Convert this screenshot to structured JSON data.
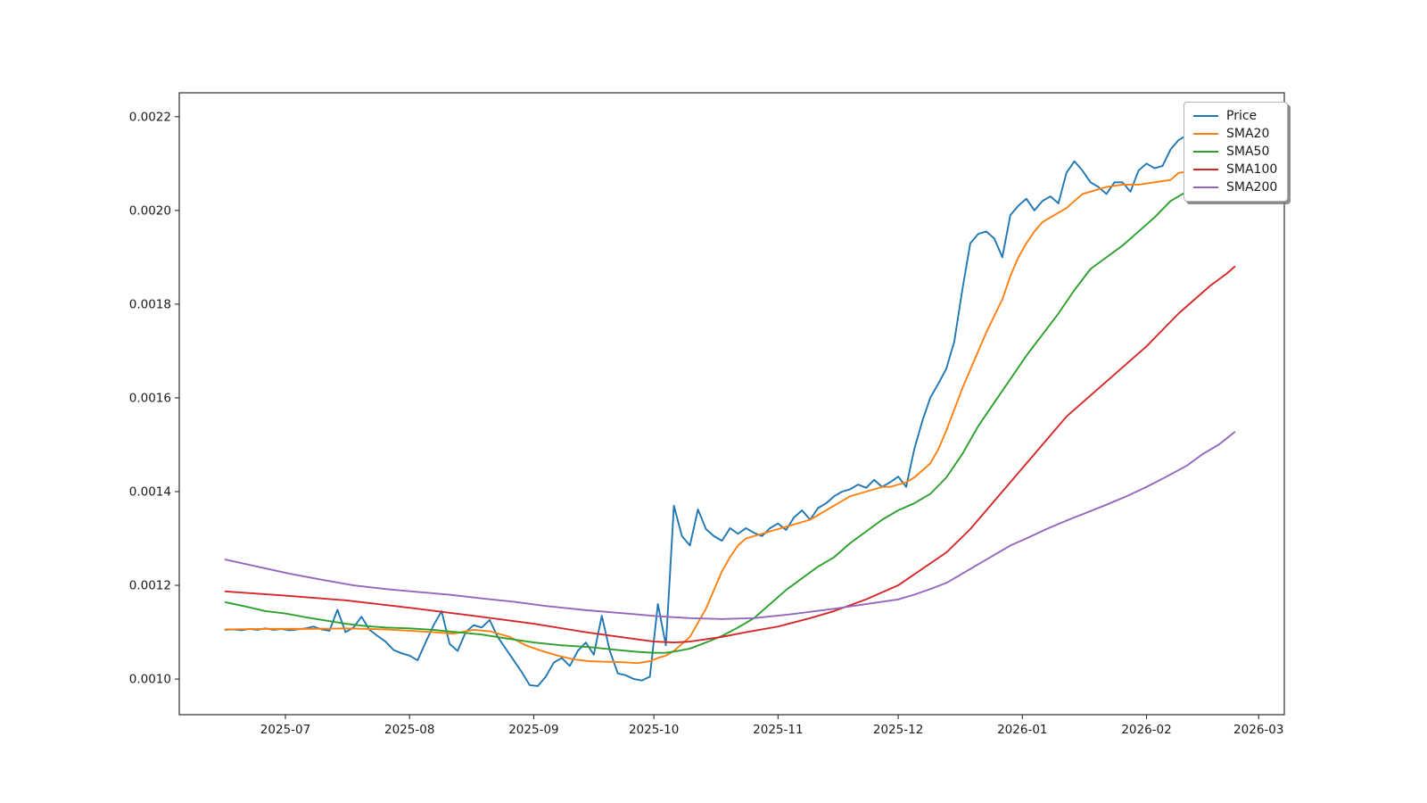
{
  "figure": {
    "background": "#ffffff",
    "text_color": "#1a1a1a",
    "frame_color": "#2b2b2b"
  },
  "legend": {
    "position": "upper-right",
    "entries": [
      "Price",
      "SMA20",
      "SMA50",
      "SMA100",
      "SMA200"
    ]
  },
  "chart_data": {
    "type": "line",
    "title": "",
    "xlabel": "",
    "ylabel": "",
    "grid": false,
    "x_axis": {
      "kind": "date",
      "start_date": "2025-06-16",
      "domain_days": [
        -11.5,
        264.4
      ],
      "tick_days": [
        15,
        46,
        77,
        107,
        138,
        168,
        199,
        230,
        258
      ],
      "tick_labels": [
        "2025-07",
        "2025-08",
        "2025-09",
        "2025-10",
        "2025-11",
        "2025-12",
        "2026-01",
        "2026-02",
        "2026-03"
      ]
    },
    "y_axis": {
      "domain": [
        0.000924,
        0.002251
      ],
      "tick_values": [
        0.001,
        0.0012,
        0.0014,
        0.0016,
        0.0018,
        0.002,
        0.0022
      ],
      "tick_labels": [
        "0.0010",
        "0.0012",
        "0.0014",
        "0.0016",
        "0.0018",
        "0.0020",
        "0.0022"
      ]
    },
    "value_scale": 0.0001,
    "series": [
      {
        "name": "Price",
        "color": "#1f77b4",
        "start_day": 0,
        "step_days": 2,
        "values": [
          11.05,
          11.06,
          11.04,
          11.07,
          11.05,
          11.08,
          11.05,
          11.07,
          11.04,
          11.06,
          11.08,
          11.12,
          11.06,
          11.03,
          11.48,
          11.0,
          11.1,
          11.33,
          11.05,
          10.92,
          10.8,
          10.62,
          10.55,
          10.5,
          10.4,
          10.78,
          11.15,
          11.45,
          10.75,
          10.6,
          11.0,
          11.15,
          11.1,
          11.26,
          10.9,
          10.65,
          10.4,
          10.15,
          9.87,
          9.85,
          10.05,
          10.35,
          10.45,
          10.28,
          10.6,
          10.78,
          10.52,
          11.35,
          10.6,
          10.12,
          10.08,
          10.0,
          9.97,
          10.05,
          11.6,
          10.72,
          13.7,
          13.05,
          12.85,
          13.62,
          13.2,
          13.05,
          12.95,
          13.22,
          13.1,
          13.22,
          13.12,
          13.05,
          13.22,
          13.32,
          13.18,
          13.45,
          13.6,
          13.4,
          13.65,
          13.75,
          13.9,
          14.0,
          14.05,
          14.15,
          14.08,
          14.25,
          14.1,
          14.2,
          14.32,
          14.1,
          14.9,
          15.5,
          16.0,
          16.3,
          16.62,
          17.2,
          18.3,
          19.3,
          19.5,
          19.55,
          19.4,
          19.0,
          19.9,
          20.1,
          20.25,
          20.0,
          20.2,
          20.3,
          20.15,
          20.8,
          21.05,
          20.85,
          20.6,
          20.5,
          20.35,
          20.6,
          20.6,
          20.4,
          20.85,
          21.0,
          20.9,
          20.95,
          21.3,
          21.5,
          21.6,
          21.7,
          21.75,
          21.85,
          21.9,
          22.0,
          22.1
        ]
      },
      {
        "name": "SMA20",
        "color": "#ff7f0e",
        "points": [
          [
            0,
            11.06
          ],
          [
            10,
            11.07
          ],
          [
            20,
            11.07
          ],
          [
            30,
            11.08
          ],
          [
            40,
            11.06
          ],
          [
            46,
            11.03
          ],
          [
            52,
            11.0
          ],
          [
            57,
            10.97
          ],
          [
            62,
            11.05
          ],
          [
            66,
            11.02
          ],
          [
            71,
            10.9
          ],
          [
            75,
            10.72
          ],
          [
            79,
            10.6
          ],
          [
            83,
            10.5
          ],
          [
            87,
            10.42
          ],
          [
            91,
            10.38
          ],
          [
            95,
            10.37
          ],
          [
            99,
            10.36
          ],
          [
            103,
            10.34
          ],
          [
            106,
            10.38
          ],
          [
            108,
            10.45
          ],
          [
            110,
            10.5
          ],
          [
            112,
            10.6
          ],
          [
            114,
            10.75
          ],
          [
            116,
            10.9
          ],
          [
            118,
            11.2
          ],
          [
            120,
            11.5
          ],
          [
            122,
            11.9
          ],
          [
            124,
            12.3
          ],
          [
            126,
            12.6
          ],
          [
            128,
            12.85
          ],
          [
            130,
            13.0
          ],
          [
            132,
            13.05
          ],
          [
            134,
            13.1
          ],
          [
            136,
            13.15
          ],
          [
            138,
            13.2
          ],
          [
            140,
            13.25
          ],
          [
            142,
            13.3
          ],
          [
            144,
            13.35
          ],
          [
            146,
            13.4
          ],
          [
            148,
            13.5
          ],
          [
            150,
            13.6
          ],
          [
            152,
            13.7
          ],
          [
            154,
            13.8
          ],
          [
            156,
            13.9
          ],
          [
            158,
            13.95
          ],
          [
            160,
            14.0
          ],
          [
            162,
            14.05
          ],
          [
            164,
            14.1
          ],
          [
            166,
            14.1
          ],
          [
            168,
            14.15
          ],
          [
            170,
            14.2
          ],
          [
            172,
            14.3
          ],
          [
            174,
            14.45
          ],
          [
            176,
            14.6
          ],
          [
            178,
            14.9
          ],
          [
            180,
            15.3
          ],
          [
            182,
            15.75
          ],
          [
            184,
            16.2
          ],
          [
            186,
            16.6
          ],
          [
            188,
            17.0
          ],
          [
            190,
            17.4
          ],
          [
            192,
            17.75
          ],
          [
            194,
            18.1
          ],
          [
            196,
            18.6
          ],
          [
            198,
            19.0
          ],
          [
            200,
            19.3
          ],
          [
            202,
            19.55
          ],
          [
            204,
            19.75
          ],
          [
            206,
            19.85
          ],
          [
            208,
            19.95
          ],
          [
            210,
            20.05
          ],
          [
            212,
            20.2
          ],
          [
            214,
            20.35
          ],
          [
            216,
            20.4
          ],
          [
            218,
            20.45
          ],
          [
            220,
            20.5
          ],
          [
            224,
            20.55
          ],
          [
            228,
            20.55
          ],
          [
            232,
            20.6
          ],
          [
            236,
            20.65
          ],
          [
            238,
            20.8
          ],
          [
            242,
            20.85
          ],
          [
            246,
            20.9
          ],
          [
            250,
            21.0
          ],
          [
            252,
            21.05
          ]
        ]
      },
      {
        "name": "SMA50",
        "color": "#2ca02c",
        "points": [
          [
            0,
            11.64
          ],
          [
            5,
            11.55
          ],
          [
            10,
            11.45
          ],
          [
            15,
            11.4
          ],
          [
            20,
            11.32
          ],
          [
            25,
            11.25
          ],
          [
            30,
            11.18
          ],
          [
            35,
            11.13
          ],
          [
            40,
            11.1
          ],
          [
            46,
            11.08
          ],
          [
            52,
            11.05
          ],
          [
            58,
            11.0
          ],
          [
            64,
            10.95
          ],
          [
            70,
            10.87
          ],
          [
            77,
            10.78
          ],
          [
            84,
            10.72
          ],
          [
            91,
            10.68
          ],
          [
            98,
            10.62
          ],
          [
            103,
            10.58
          ],
          [
            107,
            10.56
          ],
          [
            110,
            10.56
          ],
          [
            113,
            10.6
          ],
          [
            116,
            10.65
          ],
          [
            120,
            10.78
          ],
          [
            124,
            10.92
          ],
          [
            128,
            11.1
          ],
          [
            132,
            11.3
          ],
          [
            136,
            11.6
          ],
          [
            140,
            11.9
          ],
          [
            144,
            12.15
          ],
          [
            148,
            12.4
          ],
          [
            152,
            12.6
          ],
          [
            156,
            12.9
          ],
          [
            160,
            13.15
          ],
          [
            164,
            13.4
          ],
          [
            168,
            13.6
          ],
          [
            172,
            13.75
          ],
          [
            176,
            13.95
          ],
          [
            180,
            14.3
          ],
          [
            184,
            14.8
          ],
          [
            188,
            15.4
          ],
          [
            192,
            15.9
          ],
          [
            196,
            16.4
          ],
          [
            200,
            16.9
          ],
          [
            204,
            17.35
          ],
          [
            208,
            17.8
          ],
          [
            212,
            18.3
          ],
          [
            216,
            18.75
          ],
          [
            220,
            19.0
          ],
          [
            224,
            19.25
          ],
          [
            228,
            19.55
          ],
          [
            232,
            19.85
          ],
          [
            236,
            20.2
          ],
          [
            240,
            20.4
          ],
          [
            244,
            20.6
          ],
          [
            248,
            20.8
          ],
          [
            252,
            21.0
          ]
        ]
      },
      {
        "name": "SMA100",
        "color": "#d62728",
        "points": [
          [
            0,
            11.87
          ],
          [
            15,
            11.78
          ],
          [
            30,
            11.68
          ],
          [
            46,
            11.52
          ],
          [
            62,
            11.35
          ],
          [
            77,
            11.18
          ],
          [
            90,
            11.0
          ],
          [
            100,
            10.88
          ],
          [
            107,
            10.8
          ],
          [
            112,
            10.78
          ],
          [
            116,
            10.8
          ],
          [
            124,
            10.9
          ],
          [
            130,
            11.0
          ],
          [
            138,
            11.12
          ],
          [
            146,
            11.3
          ],
          [
            152,
            11.45
          ],
          [
            160,
            11.7
          ],
          [
            168,
            12.0
          ],
          [
            174,
            12.35
          ],
          [
            180,
            12.7
          ],
          [
            186,
            13.2
          ],
          [
            190,
            13.6
          ],
          [
            194,
            14.0
          ],
          [
            198,
            14.4
          ],
          [
            202,
            14.8
          ],
          [
            206,
            15.2
          ],
          [
            210,
            15.6
          ],
          [
            214,
            15.9
          ],
          [
            218,
            16.2
          ],
          [
            222,
            16.5
          ],
          [
            226,
            16.8
          ],
          [
            230,
            17.1
          ],
          [
            234,
            17.45
          ],
          [
            238,
            17.8
          ],
          [
            242,
            18.1
          ],
          [
            246,
            18.4
          ],
          [
            250,
            18.65
          ],
          [
            252,
            18.8
          ]
        ]
      },
      {
        "name": "SMA200",
        "color": "#9467bd",
        "points": [
          [
            0,
            12.55
          ],
          [
            8,
            12.4
          ],
          [
            16,
            12.25
          ],
          [
            24,
            12.12
          ],
          [
            32,
            12.0
          ],
          [
            40,
            11.92
          ],
          [
            48,
            11.86
          ],
          [
            56,
            11.8
          ],
          [
            64,
            11.72
          ],
          [
            72,
            11.65
          ],
          [
            80,
            11.56
          ],
          [
            90,
            11.47
          ],
          [
            100,
            11.4
          ],
          [
            108,
            11.34
          ],
          [
            116,
            11.3
          ],
          [
            124,
            11.28
          ],
          [
            132,
            11.3
          ],
          [
            141,
            11.38
          ],
          [
            152,
            11.5
          ],
          [
            160,
            11.6
          ],
          [
            168,
            11.7
          ],
          [
            172,
            11.8
          ],
          [
            176,
            11.92
          ],
          [
            180,
            12.05
          ],
          [
            184,
            12.25
          ],
          [
            188,
            12.45
          ],
          [
            192,
            12.65
          ],
          [
            196,
            12.85
          ],
          [
            200,
            13.0
          ],
          [
            205,
            13.2
          ],
          [
            210,
            13.38
          ],
          [
            215,
            13.55
          ],
          [
            220,
            13.72
          ],
          [
            225,
            13.9
          ],
          [
            230,
            14.1
          ],
          [
            235,
            14.32
          ],
          [
            240,
            14.55
          ],
          [
            244,
            14.8
          ],
          [
            248,
            15.0
          ],
          [
            252,
            15.27
          ]
        ]
      }
    ]
  }
}
